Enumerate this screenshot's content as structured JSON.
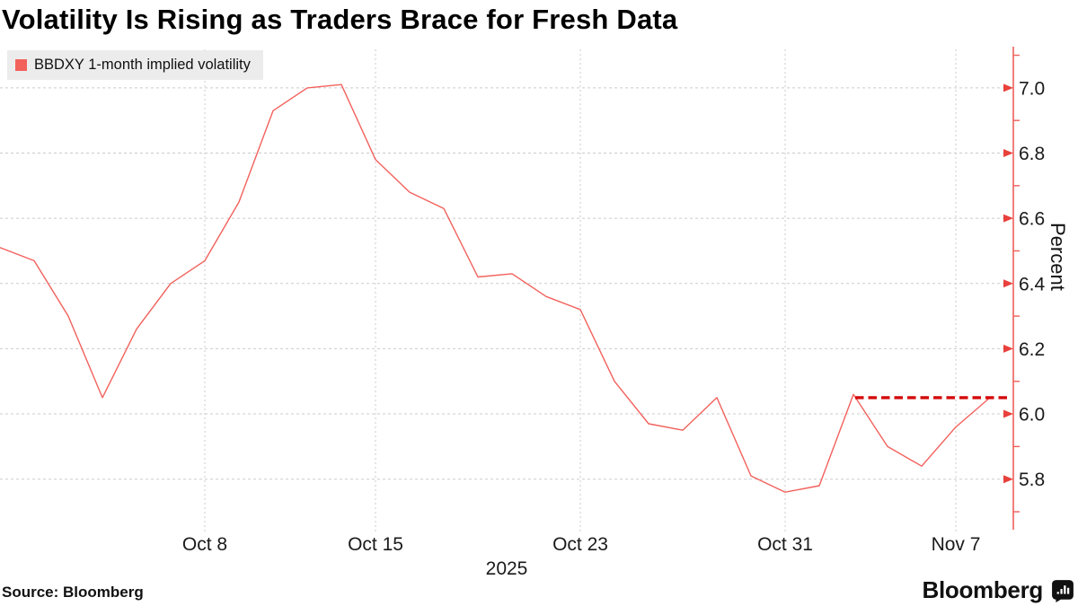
{
  "header": {
    "title": "Volatility Is Rising as Traders Brace for Fresh Data"
  },
  "footer": {
    "source": "Source: Bloomberg",
    "brand": "Bloomberg"
  },
  "chart_data": {
    "type": "line",
    "title": "Volatility Is Rising as Traders Brace for Fresh Data",
    "ylabel": "Percent",
    "x_axis_year": "2025",
    "grid": true,
    "legend_position": "top-left",
    "ylim": [
      5.645,
      7.118
    ],
    "yticks": [
      7.0,
      6.8,
      6.6,
      6.4,
      6.2,
      6.0,
      5.8
    ],
    "minor_tick_step": 0.1,
    "categories": [
      "Sep 30",
      "Oct 1",
      "Oct 2",
      "Oct 3",
      "Oct 6",
      "Oct 7",
      "Oct 8",
      "Oct 9",
      "Oct 10",
      "Oct 13",
      "Oct 14",
      "Oct 15",
      "Oct 16",
      "Oct 17",
      "Oct 20",
      "Oct 21",
      "Oct 22",
      "Oct 23",
      "Oct 24",
      "Oct 27",
      "Oct 28",
      "Oct 29",
      "Oct 30",
      "Oct 31",
      "Nov 3",
      "Nov 4",
      "Nov 5",
      "Nov 6",
      "Nov 7",
      "Nov 10"
    ],
    "series": [
      {
        "name": "BBDXY 1-month implied volatility",
        "color": "#f2615c",
        "values": [
          6.51,
          6.47,
          6.3,
          6.05,
          6.26,
          6.4,
          6.47,
          6.65,
          6.93,
          7.0,
          7.01,
          6.78,
          6.68,
          6.63,
          6.42,
          6.43,
          6.36,
          6.32,
          6.1,
          5.97,
          5.95,
          6.05,
          5.81,
          5.76,
          5.78,
          6.06,
          5.9,
          5.84,
          5.96,
          6.05
        ]
      }
    ],
    "xticks": [
      {
        "label": "Oct 8",
        "index": 6
      },
      {
        "label": "Oct 15",
        "index": 11
      },
      {
        "label": "Oct 23",
        "index": 17
      },
      {
        "label": "Oct 31",
        "index": 23
      },
      {
        "label": "Nov 7",
        "index": 28
      }
    ],
    "reference_line": {
      "style": "dashed",
      "value": 6.05,
      "start_index": 25,
      "color": "#d40808"
    },
    "axis_color": "#ef5f5a",
    "tick_arrow_color": "#e8413c",
    "gridline_color": "#cbcbcb"
  }
}
